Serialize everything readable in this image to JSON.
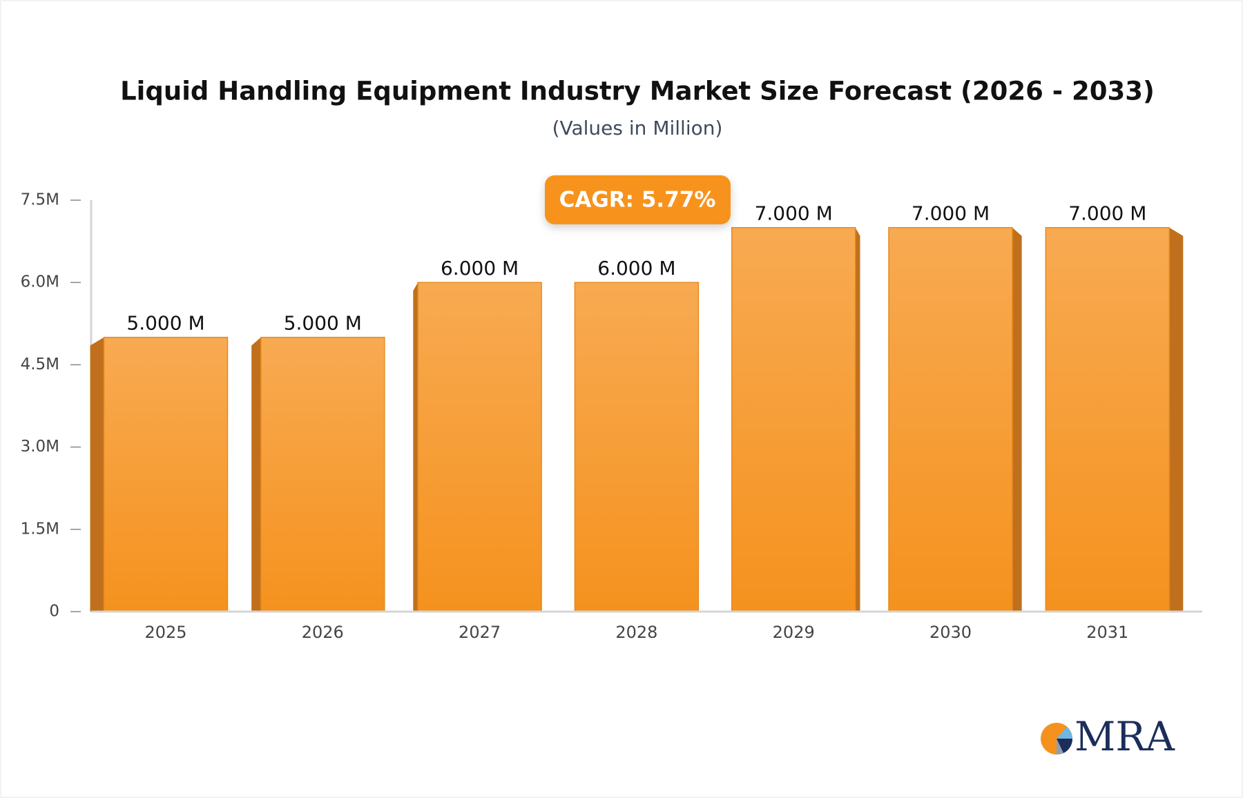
{
  "chart_data": {
    "type": "bar",
    "title": "Liquid Handling Equipment Industry Market Size Forecast (2026 - 2033)",
    "subtitle": "(Values in Million)",
    "annotation": "CAGR: 5.77%",
    "categories": [
      "2025",
      "2026",
      "2027",
      "2028",
      "2029",
      "2030",
      "2031"
    ],
    "values": [
      5,
      5,
      6,
      6,
      7,
      7,
      7
    ],
    "value_labels": [
      "5.000 M",
      "5.000 M",
      "6.000 M",
      "6.000 M",
      "7.000 M",
      "7.000 M",
      "7.000 M"
    ],
    "color": "#f5961f",
    "ylim": [
      0,
      7.5
    ],
    "yticks": [
      0,
      {
        "value": 1.5,
        "label": "1.5M"
      },
      {
        "value": 3,
        "label": "3.0M"
      },
      {
        "value": 4.5,
        "label": "4.5M"
      },
      {
        "value": 6,
        "label": "6.0M"
      },
      {
        "value": 7.5,
        "label": "7.5M"
      }
    ],
    "logo": "MRA"
  }
}
